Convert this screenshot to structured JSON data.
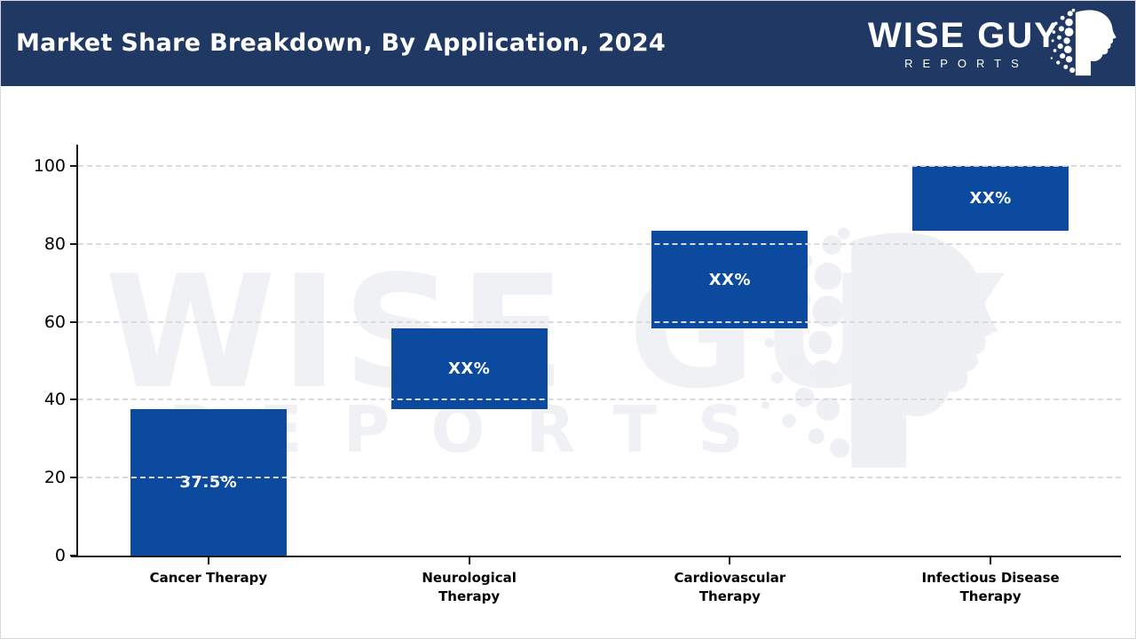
{
  "header": {
    "title": "Market Share Breakdown, By Application, 2024",
    "bg_color": "#1f3864",
    "logo": {
      "brand": "WISE GUY",
      "sub": "REPORTS"
    }
  },
  "watermark": {
    "brand": "WISE GUY",
    "sub": "REPORTS"
  },
  "chart_data": {
    "type": "bar",
    "subtype": "waterfall",
    "title": "Market Share Breakdown, By Application, 2024",
    "xlabel": "",
    "ylabel": "",
    "ylim": [
      0,
      100
    ],
    "yticks": [
      0,
      20,
      40,
      60,
      80,
      100
    ],
    "grid": "horizontal dashed, drawn above bars",
    "legend": "none",
    "bar_color": "#0b4a9e",
    "bar_label_color": "#ffffff",
    "categories": [
      {
        "name": "Cancer Therapy",
        "lines": [
          "Cancer Therapy"
        ]
      },
      {
        "name": "Neurological Therapy",
        "lines": [
          "Neurological",
          "Therapy"
        ]
      },
      {
        "name": "Cardiovascular Therapy",
        "lines": [
          "Cardiovascular",
          "Therapy"
        ]
      },
      {
        "name": "Infectious Disease Therapy",
        "lines": [
          "Infectious Disease",
          "Therapy"
        ]
      }
    ],
    "segments": [
      {
        "category": "Cancer Therapy",
        "start": 0,
        "end": 37.5,
        "value": 37.5,
        "label": "37.5%"
      },
      {
        "category": "Neurological Therapy",
        "start": 37.5,
        "end": 58.3,
        "value": 20.8,
        "label": "XX%"
      },
      {
        "category": "Cardiovascular Therapy",
        "start": 58.3,
        "end": 83.3,
        "value": 25.0,
        "label": "XX%"
      },
      {
        "category": "Infectious Disease Therapy",
        "start": 83.3,
        "end": 100,
        "value": 16.7,
        "label": "XX%"
      }
    ]
  }
}
